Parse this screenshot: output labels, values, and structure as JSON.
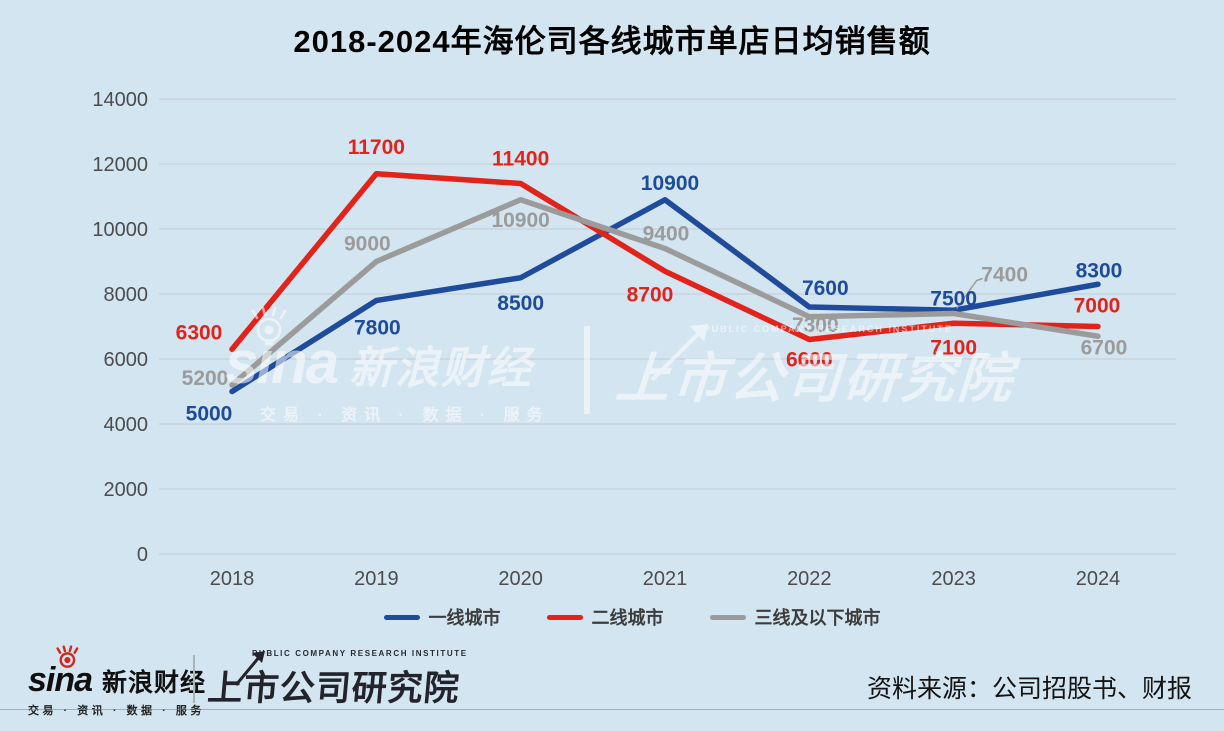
{
  "title": "2018-2024年海伦司各线城市单店日均销售额",
  "chart_data": {
    "type": "line",
    "title": "2018-2024年海伦司各线城市单店日均销售额",
    "x": [
      "2018",
      "2019",
      "2020",
      "2021",
      "2022",
      "2023",
      "2024"
    ],
    "ylim": [
      0,
      14000
    ],
    "y_ticks": [
      0,
      2000,
      4000,
      6000,
      8000,
      10000,
      12000,
      14000
    ],
    "grid": true,
    "legend_position": "bottom",
    "series": [
      {
        "name": "一线城市",
        "color": "#1E4B9C",
        "values": [
          5000,
          7800,
          8500,
          10900,
          7600,
          7500,
          8300
        ],
        "label_offsets": [
          [
            -23,
            22
          ],
          [
            1,
            27
          ],
          [
            0,
            25
          ],
          [
            5,
            -17
          ],
          [
            16,
            -19
          ],
          [
            0,
            -12
          ],
          [
            1,
            -14
          ]
        ]
      },
      {
        "name": "二线城市",
        "color": "#E2231A",
        "values": [
          6300,
          11700,
          11400,
          8700,
          6600,
          7100,
          7000
        ],
        "label_offsets": [
          [
            -33,
            -17
          ],
          [
            0,
            -27
          ],
          [
            0,
            -25
          ],
          [
            -15,
            23
          ],
          [
            0,
            20
          ],
          [
            0,
            24
          ],
          [
            -1,
            -21
          ]
        ]
      },
      {
        "name": "三线及以下城市",
        "color": "#9B9B9B",
        "values": [
          5200,
          9000,
          10900,
          9400,
          7300,
          7400,
          6700
        ],
        "label_offsets": [
          [
            -27,
            -7
          ],
          [
            -9,
            -18
          ],
          [
            0,
            20
          ],
          [
            1,
            -15
          ],
          [
            6,
            8
          ],
          [
            51,
            -39
          ],
          [
            6,
            11
          ]
        ],
        "leader_line_index": 5
      }
    ]
  },
  "watermark": {
    "sina_text": "sina",
    "sina_cn": "新浪财经",
    "sina_sub": "交易 · 资讯 · 数据 · 服务",
    "institute_en": "PUBLIC COMPANY RESEARCH INSTITUTE",
    "institute": "上市公司研究院"
  },
  "footer": {
    "sina_text": "sina",
    "sina_cn": "新浪财经",
    "sina_sub": "交易 · 资讯 · 数据 · 服务",
    "institute_en": "PUBLIC COMPANY RESEARCH INSTITUTE",
    "institute": "上市公司研究院",
    "source": "资料来源：公司招股书、财报"
  },
  "colors": {
    "background": "#D3E5F1",
    "gridline": "#C3CCD3",
    "axis_text": "#4C4C4C",
    "legend_text": "#3D3D3D",
    "tier1_blue": "#1E4B9C",
    "tier2_red": "#E2231A",
    "tier3_gray": "#9B9B9B"
  }
}
